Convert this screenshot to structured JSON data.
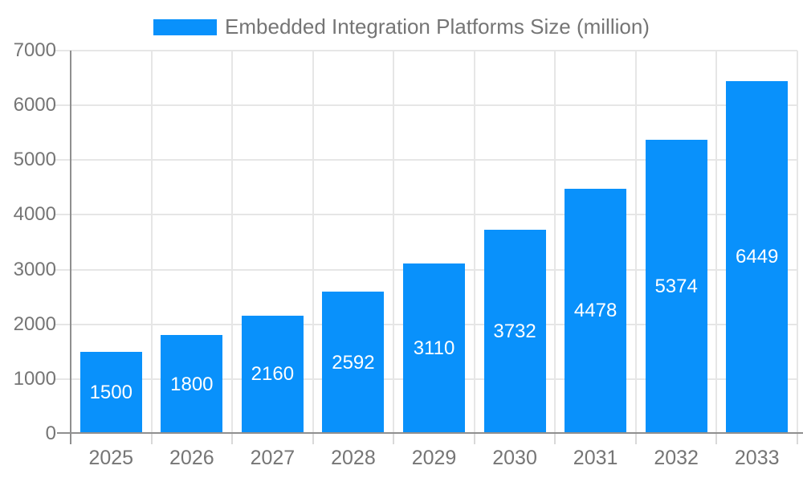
{
  "legend": {
    "label": "Embedded Integration Platforms Size (million)"
  },
  "colors": {
    "bar": "#0991fb",
    "grid": "#e6e6e6",
    "axis": "#8f8f8f",
    "tick": "#d9d9d9",
    "tick_label": "#757575",
    "bar_label": "#ffffff",
    "background": "#ffffff"
  },
  "chart_data": {
    "type": "bar",
    "title": "Embedded Integration Platforms Size (million)",
    "categories": [
      "2025",
      "2026",
      "2027",
      "2028",
      "2029",
      "2030",
      "2031",
      "2032",
      "2033"
    ],
    "values": [
      1500,
      1800,
      2160,
      2592,
      3110,
      3732,
      4478,
      5374,
      6449
    ],
    "xlabel": "",
    "ylabel": "",
    "ylim": [
      0,
      7000
    ],
    "ytick_step": 1000,
    "ytick_labels": [
      "0",
      "1000",
      "2000",
      "3000",
      "4000",
      "5000",
      "6000",
      "7000"
    ],
    "grid": true,
    "legend_position": "top-center",
    "value_labels": "inside-center"
  }
}
